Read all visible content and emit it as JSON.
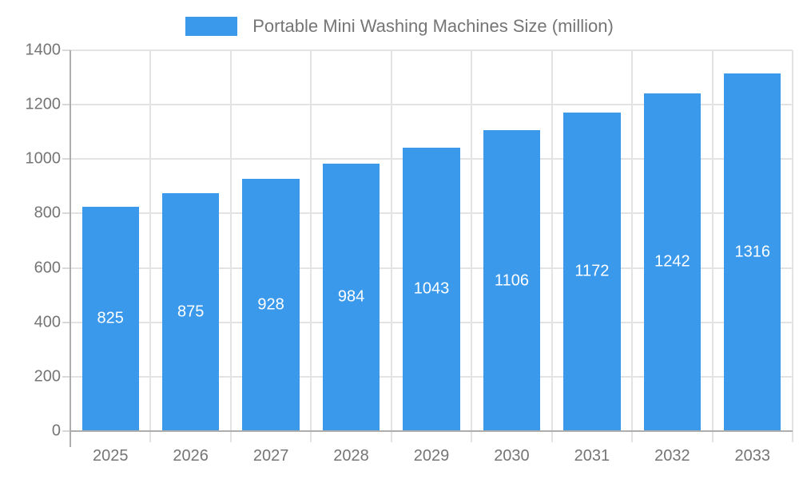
{
  "legend": {
    "label": "Portable Mini Washing Machines Size (million)"
  },
  "colors": {
    "bar": "#3B99EC",
    "axis_line": "#ADADAD",
    "grid_line": "#E3E3E3",
    "tick": "#D8D8D8",
    "axis_text": "#757575",
    "value_text": "#FFFFFF",
    "background": "#FFFFFF"
  },
  "chart_data": {
    "type": "bar",
    "title": "Portable Mini Washing Machines Size (million)",
    "series_name": "Portable Mini Washing Machines Size (million)",
    "categories": [
      "2025",
      "2026",
      "2027",
      "2028",
      "2029",
      "2030",
      "2031",
      "2032",
      "2033"
    ],
    "values": [
      825,
      875,
      928,
      984,
      1043,
      1106,
      1172,
      1242,
      1316
    ],
    "xlabel": "",
    "ylabel": "",
    "ylim": [
      0,
      1400
    ],
    "ytick_step": 200,
    "yticks": [
      0,
      200,
      400,
      600,
      800,
      1000,
      1200,
      1400
    ],
    "grid": true,
    "legend_position": "top",
    "value_label_position": "inside-center"
  }
}
